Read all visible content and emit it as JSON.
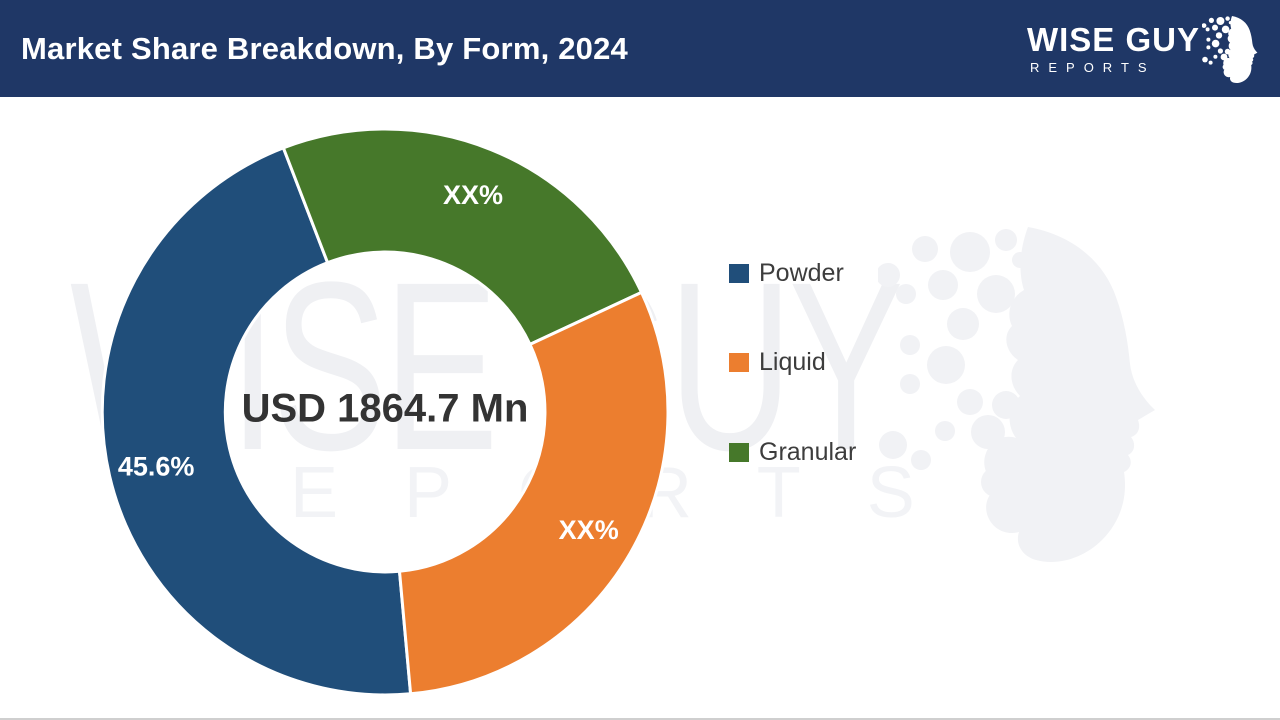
{
  "header": {
    "title": "Market Share Breakdown, By Form, 2024",
    "logo": {
      "line1": "WISE GUY",
      "line2": "REPORTS"
    }
  },
  "watermark": {
    "line1": "WISE GUY",
    "line2": "REPORTS"
  },
  "chart_data": {
    "type": "pie",
    "donut": true,
    "title": "Market Share Breakdown, By Form, 2024",
    "center_label": "USD 1864.7 Mn",
    "start_angle_deg": 174.8,
    "direction": "clockwise",
    "legend_position": "right",
    "segments": [
      {
        "label": "Powder",
        "display_label": "45.6%",
        "value_pct": 45.6,
        "color": "#204e7a"
      },
      {
        "label": "Granular",
        "display_label": "XX%",
        "value_pct": 23.9,
        "color": "#46782a"
      },
      {
        "label": "Liquid",
        "display_label": "XX%",
        "value_pct": 30.5,
        "color": "#ec7e2f"
      }
    ]
  },
  "legend": {
    "items": [
      {
        "label": "Powder",
        "color": "#204e7a"
      },
      {
        "label": "Liquid",
        "color": "#ec7e2f"
      },
      {
        "label": "Granular",
        "color": "#46782a"
      }
    ]
  },
  "colors": {
    "header_bg": "#1f3766",
    "center_text": "#333333",
    "watermark": "#eff0f3",
    "footer_line": "#cfcfcf"
  }
}
